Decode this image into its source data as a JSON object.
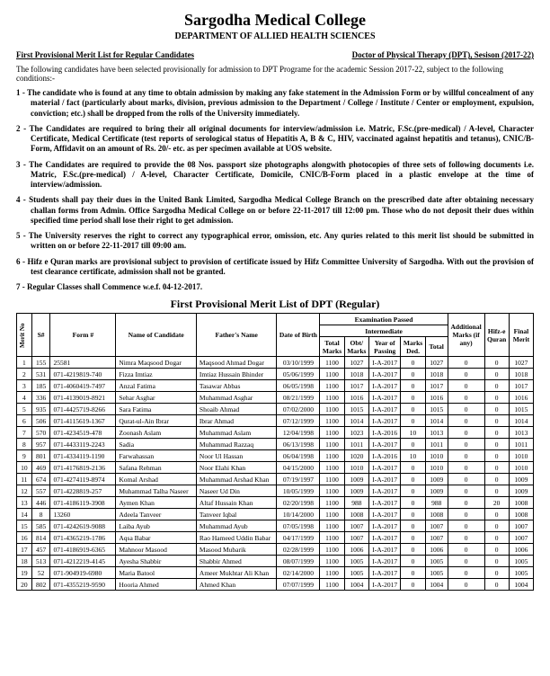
{
  "college": "Sargodha Medical College",
  "department": "DEPARTMENT OF ALLIED HEALTH SCIENCES",
  "header_left": "First Provisional Merit List for Regular Candidates",
  "header_right": "Doctor of Physical Therapy (DPT), Sesison (2017-22)",
  "intro": "The following candidates have been selected provisionally for admission to DPT Programe for the academic Session 2017-22, subject to the following conditions:-",
  "conditions": [
    {
      "n": "1 -",
      "text": "The candidate who is found at any time to obtain admission by making any fake statement in the Admission Form or by willful concealment of any material / fact (particularly about marks, division, previous admission to the Department / College / Institute / Center or employment, expulsion, conviction; etc.) shall be dropped from the rolls of the University immediately."
    },
    {
      "n": "2 -",
      "text": "The Candidates are required to bring their all original documents for interview/admission i.e. Matric, F.Sc.(pre-medical) / A-level, Character Certificate, Medical Certificate (test reports of serological status of Hepatitis A, B & C, HIV, vaccinated against hepatitis and tetanus), CNIC/B-Form, Affidavit on an amount of Rs. 20/- etc. as per specimen available at UOS website."
    },
    {
      "n": "3 -",
      "text": "The Candidates are required to provide the 08 Nos. passport size photographs alongwith photocopies of three sets of following documents i.e. Matric, F.Sc.(pre-medical) / A-level, Character Certificate, Domicile, CNIC/B-Form placed in a plastic envelope at the time of interview/admission."
    },
    {
      "n": "4 -",
      "text": "Students shall pay their dues in the United Bank Limited, Sargodha Medical College Branch on the prescribed date after obtaining necessary challan forms from Admin. Office Sargodha Medical College on or before 22-11-2017 till 12:00 pm. Those who do not deposit their dues within specified time period shall lose their right to get admission."
    },
    {
      "n": "5 -",
      "text": "The University reserves the right to correct any typographical error, omission, etc. Any quries related to this merit list should be submitted in written on or before 22-11-2017 till 09:00 am."
    },
    {
      "n": "6 -",
      "text": "Hifz e Quran marks are provisional subject to provision of certificate issued by Hifz Committee University of Sargodha. With out the provision of test clearance certificate, admission shall not be granted."
    },
    {
      "n": "7 -",
      "text": "Regular Classes shall Commence w.e.f. 04-12-2017."
    }
  ],
  "table_title": "First Provisional Merit List of DPT (Regular)",
  "th": {
    "merit_no": "Merit No",
    "s_no": "S#",
    "form": "Form #",
    "name": "Name of Candidate",
    "father": "Father's Name",
    "dob": "Date of Birth",
    "exam": "Examination Passed",
    "inter": "Intermediate",
    "total_marks": "Total Marks",
    "obt_marks": "Obt/ Marks",
    "year": "Year of Passing",
    "marks_ded": "Marks Ded.",
    "total": "Total",
    "additional": "Additional Marks (if any)",
    "hifz": "Hifz-e Quran",
    "final": "Final Merit"
  },
  "rows": [
    {
      "m": 1,
      "s": 155,
      "f": "25581",
      "name": "Nimra Maqsood Dogar",
      "father": "Maqsood Ahmad Dogar",
      "dob": "03/10/1999",
      "tm": 1100,
      "om": 1027,
      "yr": "I-A-2017",
      "md": 0,
      "tot": 1027,
      "add": 0,
      "hq": 0,
      "fm": 1027
    },
    {
      "m": 2,
      "s": 531,
      "f": "071-4219819-740",
      "name": "Fizza Imtiaz",
      "father": "Imtiaz Hussain Bhinder",
      "dob": "05/06/1999",
      "tm": 1100,
      "om": 1018,
      "yr": "I-A-2017",
      "md": 0,
      "tot": 1018,
      "add": 0,
      "hq": 0,
      "fm": 1018
    },
    {
      "m": 3,
      "s": 185,
      "f": "071-4060419-7497",
      "name": "Anzal Fatima",
      "father": "Tasawar Abbas",
      "dob": "06/05/1998",
      "tm": 1100,
      "om": 1017,
      "yr": "I-A-2017",
      "md": 0,
      "tot": 1017,
      "add": 0,
      "hq": 0,
      "fm": 1017
    },
    {
      "m": 4,
      "s": 336,
      "f": "071-4139019-8921",
      "name": "Sehar Asghar",
      "father": "Muhammad Asghar",
      "dob": "08/21/1999",
      "tm": 1100,
      "om": 1016,
      "yr": "I-A-2017",
      "md": 0,
      "tot": 1016,
      "add": 0,
      "hq": 0,
      "fm": 1016
    },
    {
      "m": 5,
      "s": 935,
      "f": "071-4425719-8266",
      "name": "Sara Fatima",
      "father": "Shoaib Ahmad",
      "dob": "07/02/2000",
      "tm": 1100,
      "om": 1015,
      "yr": "I-A-2017",
      "md": 0,
      "tot": 1015,
      "add": 0,
      "hq": 0,
      "fm": 1015
    },
    {
      "m": 6,
      "s": 506,
      "f": "071-4115619-1367",
      "name": "Qurat-ul-Ain Ibrar",
      "father": "Ibrar Ahmad",
      "dob": "07/12/1999",
      "tm": 1100,
      "om": 1014,
      "yr": "I-A-2017",
      "md": 0,
      "tot": 1014,
      "add": 0,
      "hq": 0,
      "fm": 1014
    },
    {
      "m": 7,
      "s": 570,
      "f": "071-4234519-478",
      "name": "Zoonash Aslam",
      "father": "Muhammad Aslam",
      "dob": "12/04/1998",
      "tm": 1100,
      "om": 1023,
      "yr": "I-A-2016",
      "md": 10,
      "tot": 1013,
      "add": 0,
      "hq": 0,
      "fm": 1013
    },
    {
      "m": 8,
      "s": 957,
      "f": "071-4433119-2243",
      "name": "Sadia",
      "father": "Muhammad Razzaq",
      "dob": "06/13/1998",
      "tm": 1100,
      "om": 1011,
      "yr": "I-A-2017",
      "md": 0,
      "tot": 1011,
      "add": 0,
      "hq": 0,
      "fm": 1011
    },
    {
      "m": 9,
      "s": 801,
      "f": "071-4334119-1190",
      "name": "Farwahassan",
      "father": "Noor Ul Hassan",
      "dob": "06/04/1998",
      "tm": 1100,
      "om": 1020,
      "yr": "I-A-2016",
      "md": 10,
      "tot": 1010,
      "add": 0,
      "hq": 0,
      "fm": 1010
    },
    {
      "m": 10,
      "s": 469,
      "f": "071-4176819-2136",
      "name": "Safana Rehman",
      "father": "Noor Elahi Khan",
      "dob": "04/15/2000",
      "tm": 1100,
      "om": 1010,
      "yr": "I-A-2017",
      "md": 0,
      "tot": 1010,
      "add": 0,
      "hq": 0,
      "fm": 1010
    },
    {
      "m": 11,
      "s": 674,
      "f": "071-4274119-8974",
      "name": "Komal Arshad",
      "father": "Muhammad Arshad Khan",
      "dob": "07/19/1997",
      "tm": 1100,
      "om": 1009,
      "yr": "I-A-2017",
      "md": 0,
      "tot": 1009,
      "add": 0,
      "hq": 0,
      "fm": 1009
    },
    {
      "m": 12,
      "s": 557,
      "f": "071-4228819-257",
      "name": "Muhammad Talha Naseer",
      "father": "Naseer Ud Din",
      "dob": "10/05/1999",
      "tm": 1100,
      "om": 1009,
      "yr": "I-A-2017",
      "md": 0,
      "tot": 1009,
      "add": 0,
      "hq": 0,
      "fm": 1009
    },
    {
      "m": 13,
      "s": 446,
      "f": "071-4186119-3908",
      "name": "Aymen Khan",
      "father": "Altaf Hussain Khan",
      "dob": "02/20/1998",
      "tm": 1100,
      "om": 988,
      "yr": "I-A-2017",
      "md": 0,
      "tot": 988,
      "add": 0,
      "hq": 20,
      "fm": 1008
    },
    {
      "m": 14,
      "s": 8,
      "f": "13260",
      "name": "Adeela Tanveer",
      "father": "Tanveer Iqbal",
      "dob": "10/14/2000",
      "tm": 1100,
      "om": 1008,
      "yr": "I-A-2017",
      "md": 0,
      "tot": 1008,
      "add": 0,
      "hq": 0,
      "fm": 1008
    },
    {
      "m": 15,
      "s": 585,
      "f": "071-4242619-9088",
      "name": "Laiba Ayub",
      "father": "Muhammad Ayub",
      "dob": "07/05/1998",
      "tm": 1100,
      "om": 1007,
      "yr": "I-A-2017",
      "md": 0,
      "tot": 1007,
      "add": 0,
      "hq": 0,
      "fm": 1007
    },
    {
      "m": 16,
      "s": 814,
      "f": "071-4365219-1786",
      "name": "Aqsa Babar",
      "father": "Rao Hameed Uddin Babar",
      "dob": "04/17/1999",
      "tm": 1100,
      "om": 1007,
      "yr": "I-A-2017",
      "md": 0,
      "tot": 1007,
      "add": 0,
      "hq": 0,
      "fm": 1007
    },
    {
      "m": 17,
      "s": 457,
      "f": "071-4186919-6365",
      "name": "Mahnoor Masood",
      "father": "Masood Mubarik",
      "dob": "02/28/1999",
      "tm": 1100,
      "om": 1006,
      "yr": "I-A-2017",
      "md": 0,
      "tot": 1006,
      "add": 0,
      "hq": 0,
      "fm": 1006
    },
    {
      "m": 18,
      "s": 513,
      "f": "071-4212219-4145",
      "name": "Ayesha Shabbir",
      "father": "Shabbir Ahmed",
      "dob": "08/07/1999",
      "tm": 1100,
      "om": 1005,
      "yr": "I-A-2017",
      "md": 0,
      "tot": 1005,
      "add": 0,
      "hq": 0,
      "fm": 1005
    },
    {
      "m": 19,
      "s": 52,
      "f": "071-904919-6980",
      "name": "Maria Batool",
      "father": "Ameer Mukhtar Ali Khan",
      "dob": "02/14/2000",
      "tm": 1100,
      "om": 1005,
      "yr": "I-A-2017",
      "md": 0,
      "tot": 1005,
      "add": 0,
      "hq": 0,
      "fm": 1005
    },
    {
      "m": 20,
      "s": 802,
      "f": "071-4355219-9590",
      "name": "Hooria Ahmed",
      "father": "Ahmed Khan",
      "dob": "07/07/1999",
      "tm": 1100,
      "om": 1004,
      "yr": "I-A-2017",
      "md": 0,
      "tot": 1004,
      "add": 0,
      "hq": 0,
      "fm": 1004
    }
  ],
  "colwidths": {
    "merit_no": 16,
    "s_no": 20,
    "form": 70,
    "name": 86,
    "father": 86,
    "dob": 46,
    "tm": 24,
    "om": 24,
    "yr": 34,
    "md": 24,
    "tot": 24,
    "add": 30,
    "hq": 26,
    "fm": 26
  }
}
